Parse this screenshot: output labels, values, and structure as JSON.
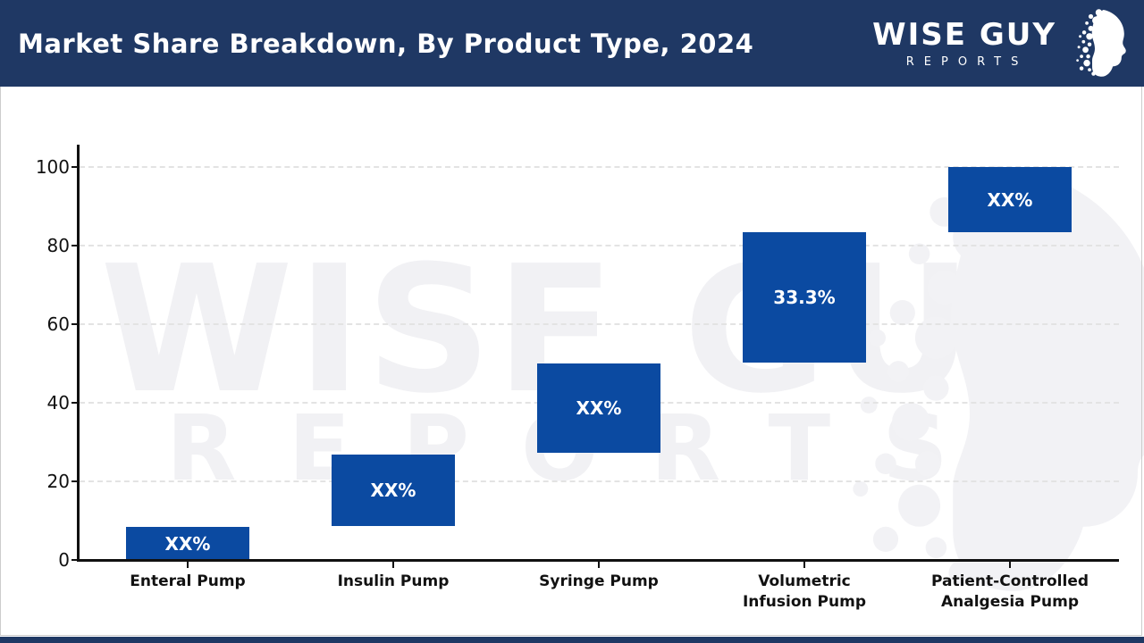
{
  "header": {
    "title": "Market Share Breakdown, By Product Type, 2024",
    "bg_color": "#1f3864"
  },
  "logo": {
    "name": "WISE GUY",
    "subtitle": "REPORTS",
    "icon": "dotted-face-profile",
    "color": "#ffffff"
  },
  "watermark": {
    "line1": "WISE GUY",
    "line2": "REPORTS"
  },
  "chart_data": {
    "type": "bar",
    "subtype": "waterfall",
    "title": "Market Share Breakdown, By Product Type, 2024",
    "categories": [
      "Enteral Pump",
      "Insulin Pump",
      "Syringe Pump",
      "Volumetric Infusion Pump",
      "Patient-Controlled Analgesia Pump"
    ],
    "xlabel_lines": [
      [
        "Enteral Pump"
      ],
      [
        "Insulin Pump"
      ],
      [
        "Syringe Pump"
      ],
      [
        "Volumetric",
        "Infusion Pump"
      ],
      [
        "Patient-Controlled",
        "Analgesia Pump"
      ]
    ],
    "segments": [
      {
        "start": 0,
        "end": 8.4,
        "label": "XX%"
      },
      {
        "start": 8.6,
        "end": 26.8,
        "label": "XX%"
      },
      {
        "start": 27.3,
        "end": 50.0,
        "label": "XX%"
      },
      {
        "start": 50.2,
        "end": 83.4,
        "label": "33.3%"
      },
      {
        "start": 83.4,
        "end": 100,
        "label": "XX%"
      }
    ],
    "values": [
      8.4,
      18.2,
      22.7,
      33.3,
      16.6
    ],
    "yticks": [
      0,
      20,
      40,
      60,
      80,
      100
    ],
    "ylim": [
      0,
      105
    ],
    "bar_color": "#0b4aa1",
    "grid": "dashed-horizontal",
    "legend": "none",
    "xlabel": "",
    "ylabel": ""
  }
}
